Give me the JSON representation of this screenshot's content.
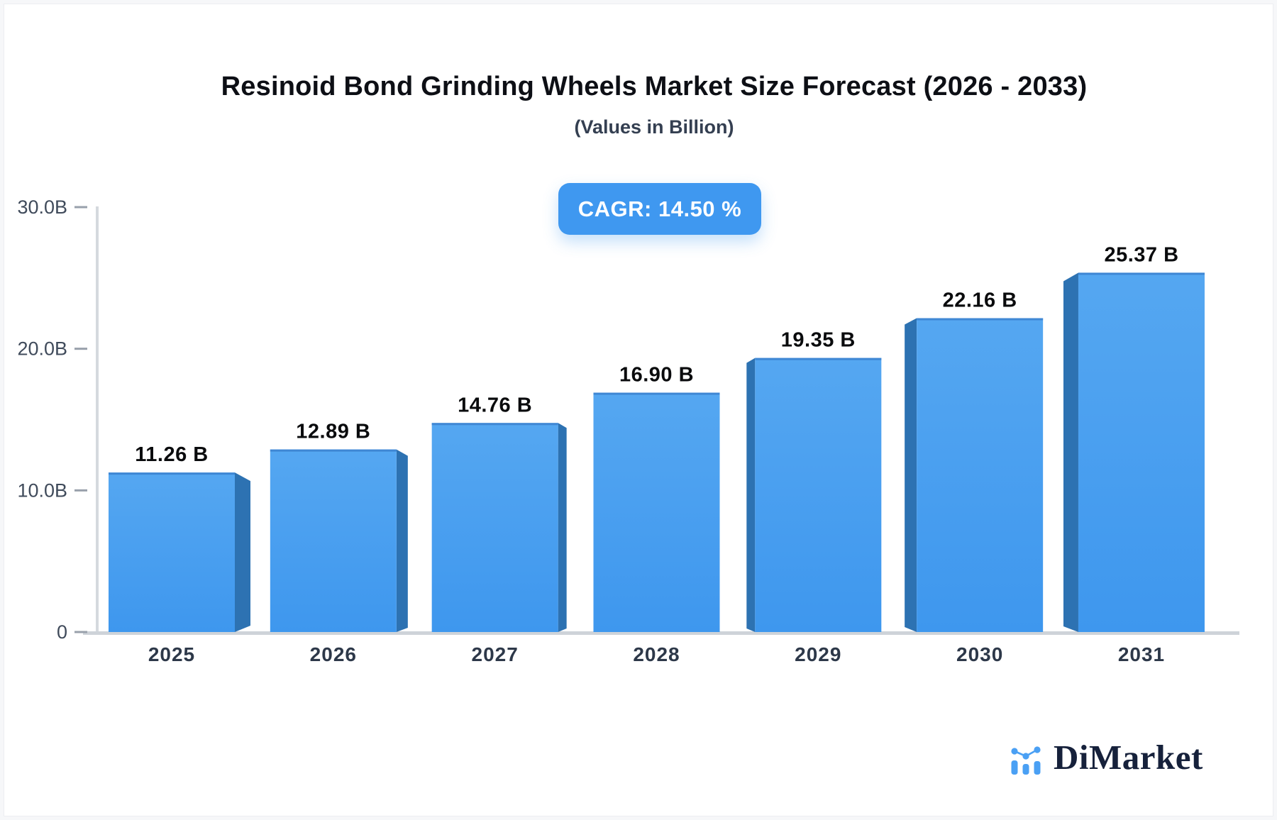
{
  "header": {
    "title": "Resinoid Bond Grinding Wheels Market Size Forecast (2026 - 2033)",
    "subtitle": "(Values in Billion)"
  },
  "badge": {
    "label": "CAGR: 14.50 %"
  },
  "chart_data": {
    "type": "bar",
    "title": "Resinoid Bond Grinding Wheels Market Size Forecast (2026 - 2033)",
    "subtitle": "(Values in Billion)",
    "categories": [
      "2025",
      "2026",
      "2027",
      "2028",
      "2029",
      "2030",
      "2031"
    ],
    "values": [
      11.26,
      12.89,
      14.76,
      16.9,
      19.35,
      22.16,
      25.37
    ],
    "value_labels": [
      "11.26 B",
      "12.89 B",
      "14.76 B",
      "16.90 B",
      "19.35 B",
      "22.16 B",
      "25.37 B"
    ],
    "xlabel": "",
    "ylabel": "",
    "ylim": [
      0,
      30
    ],
    "yticks": {
      "values": [
        0,
        10,
        20,
        30
      ],
      "labels": [
        "0",
        "10.0B",
        "20.0B",
        "30.0B"
      ]
    },
    "grid": false,
    "legend": false,
    "bar_style": "3d-perspective-center",
    "cagr": "14.50 %"
  },
  "logo": {
    "text": "DiMarket"
  },
  "colors": {
    "bar_face_top": "#55a7f1",
    "bar_face_bottom": "#3e97ee",
    "bar_side": "#2d72b2",
    "bar_top_edge": "#3f87d4",
    "badge_bg": "#3f98f0",
    "axis_line": "#d5d9de",
    "baseline": "#ced3d9",
    "tick_dash": "#98a0ab",
    "y_tick_text": "#404b5b",
    "x_tick_text": "#2d3849",
    "value_text": "#0a0b0d",
    "logo_blue": "#4aa0f4",
    "logo_navy": "#16213b"
  }
}
